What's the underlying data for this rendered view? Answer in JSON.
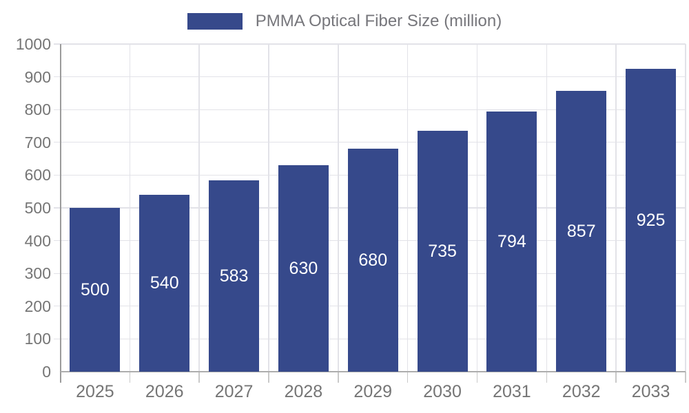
{
  "legend": {
    "label": "PMMA Optical Fiber Size (million)",
    "position": "top-center"
  },
  "chart_data": {
    "type": "bar",
    "title": "PMMA Optical Fiber Size (million)",
    "series_name": "PMMA Optical Fiber Size (million)",
    "categories": [
      "2025",
      "2026",
      "2027",
      "2028",
      "2029",
      "2030",
      "2031",
      "2032",
      "2033"
    ],
    "values": [
      500,
      540,
      583,
      630,
      680,
      735,
      794,
      857,
      925
    ],
    "xlabel": "",
    "ylabel": "",
    "ylim": [
      0,
      1000
    ],
    "ytick_step": 100,
    "ytick_labels": [
      "0",
      "100",
      "200",
      "300",
      "400",
      "500",
      "600",
      "700",
      "800",
      "900",
      "1000"
    ],
    "grid": true,
    "value_labels_shown": true,
    "colors": {
      "bar": "#36498B",
      "value_label": "#ffffff",
      "axis_label": "#757575",
      "legend_text": "#76767b",
      "gridline": "#e2e2e8",
      "axis_line": "#9b9b9b",
      "tick": "#c9c9c9",
      "background": "#ffffff"
    }
  }
}
